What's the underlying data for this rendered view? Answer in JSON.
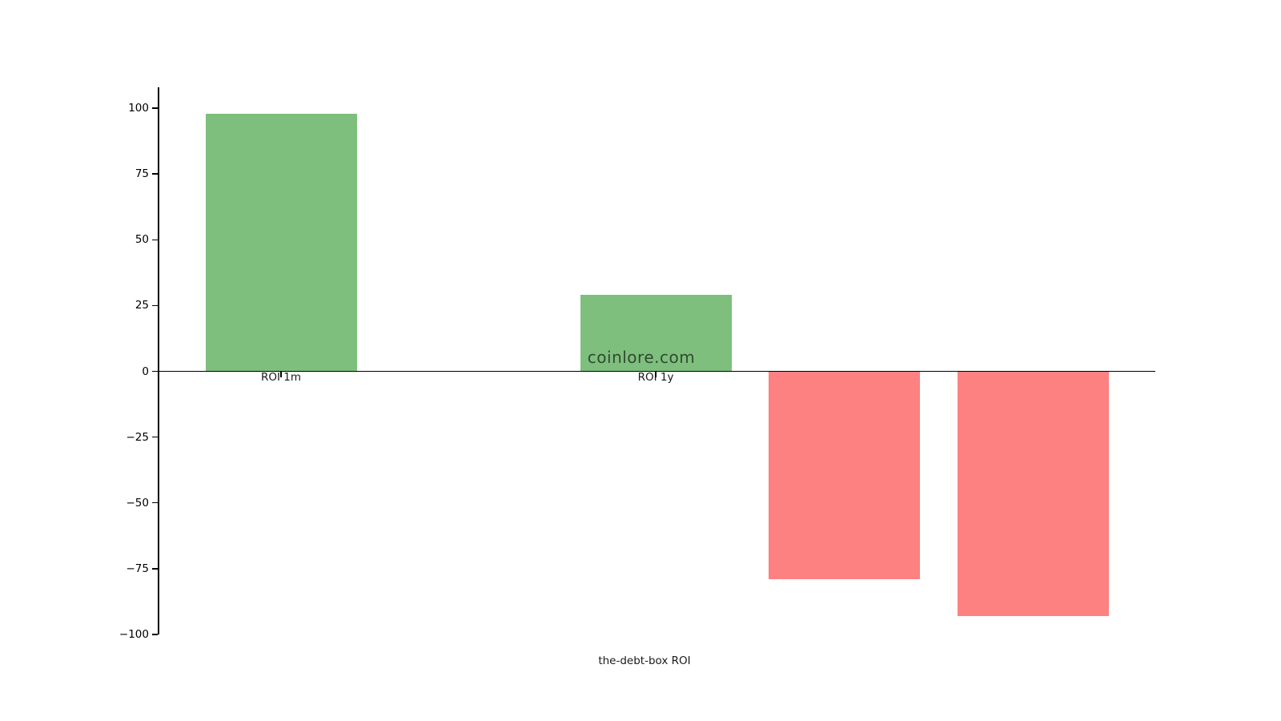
{
  "page": {
    "background": "#ffffff"
  },
  "chart_data": {
    "type": "bar",
    "title": "",
    "xlabel": "the-debt-box ROI",
    "ylabel": "",
    "watermark": "coinlore.com",
    "grid": false,
    "legend_position": "none",
    "ylim": [
      -100,
      108
    ],
    "yticks": [
      100,
      75,
      50,
      25,
      0,
      -25,
      -50,
      -75,
      -100
    ],
    "bars": [
      {
        "label": "ROI 1m",
        "value": 98,
        "color": "#7ebf7e",
        "label_visible": true
      },
      {
        "label": "ROI 1y",
        "value": 29,
        "color": "#7ebf7e",
        "label_visible": true
      },
      {
        "label": "",
        "value": -79,
        "color": "#fd8181",
        "label_visible": false
      },
      {
        "label": "",
        "value": -93,
        "color": "#fd8181",
        "label_visible": false
      }
    ],
    "colors": {
      "positive_bar": "#7ebf7e",
      "negative_bar": "#fd8181",
      "axis": "#000000",
      "watermark_text": "rgba(0,0,0,0.62)"
    }
  }
}
